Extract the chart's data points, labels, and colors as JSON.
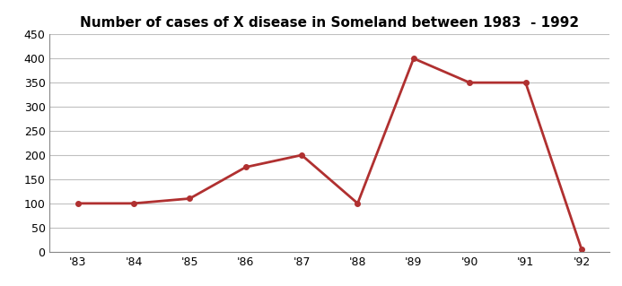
{
  "title": "Number of cases of X disease in Someland between 1983  - 1992",
  "x_labels": [
    "'83",
    "'84",
    "'85",
    "'86",
    "'87",
    "'88",
    "'89",
    "'90",
    "'91",
    "'92"
  ],
  "x_values": [
    0,
    1,
    2,
    3,
    4,
    5,
    6,
    7,
    8,
    9
  ],
  "y_values": [
    100,
    100,
    110,
    175,
    200,
    100,
    400,
    350,
    350,
    5
  ],
  "line_color": "#b03030",
  "marker": "o",
  "marker_size": 4,
  "linewidth": 2.0,
  "ylim": [
    0,
    450
  ],
  "yticks": [
    0,
    50,
    100,
    150,
    200,
    250,
    300,
    350,
    400,
    450
  ],
  "title_fontsize": 11,
  "tick_fontsize": 9,
  "bg_color": "#ffffff",
  "grid_color": "#c0c0c0",
  "title_fontweight": "bold"
}
